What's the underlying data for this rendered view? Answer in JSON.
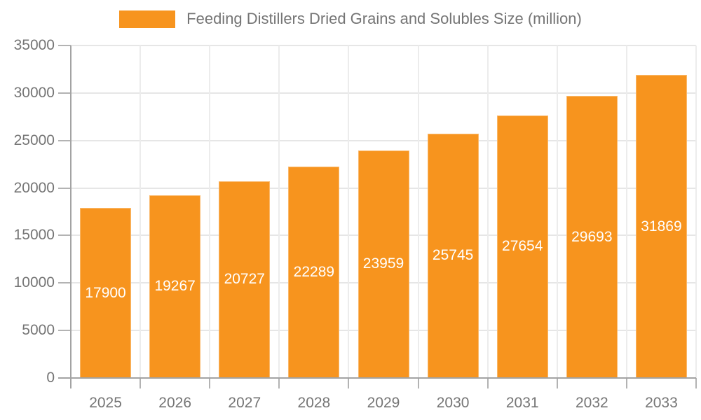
{
  "chart_data": {
    "type": "bar",
    "title": "",
    "xlabel": "",
    "ylabel": "",
    "legend_position": "top",
    "grid": "on",
    "legend_label": "Feeding Distillers Dried Grains and Solubles Size (million)",
    "categories": [
      "2025",
      "2026",
      "2027",
      "2028",
      "2029",
      "2030",
      "2031",
      "2032",
      "2033"
    ],
    "values": [
      17900,
      19267,
      20727,
      22289,
      23959,
      25745,
      27654,
      29693,
      31869
    ],
    "value_labels": [
      "17900",
      "19267",
      "20727",
      "22289",
      "23959",
      "25745",
      "27654",
      "29693",
      "31869"
    ],
    "y_ticks": [
      "0",
      "5000",
      "10000",
      "15000",
      "20000",
      "25000",
      "30000",
      "35000"
    ],
    "ylim": [
      0,
      35000
    ],
    "y_tick_step": 5000,
    "bar_color": "#F7941E",
    "bar_label_color": "#FFFFFF",
    "axis_text_color": "#757575",
    "h_gridline_color": "#E6E6E6",
    "v_gridline_color": "#ECECEC",
    "axis_line_color": "#A3A3A3",
    "tick_color": "#B3B3B3"
  }
}
